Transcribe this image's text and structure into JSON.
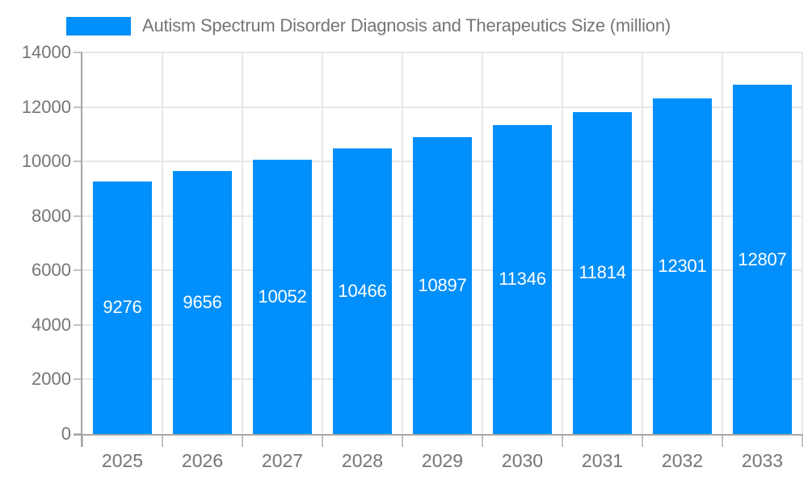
{
  "chart_data": {
    "type": "bar",
    "title": "Autism Spectrum Disorder Diagnosis and Therapeutics Size (million)",
    "categories": [
      "2025",
      "2026",
      "2027",
      "2028",
      "2029",
      "2030",
      "2031",
      "2032",
      "2033"
    ],
    "values": [
      9276,
      9656,
      10052,
      10466,
      10897,
      11346,
      11814,
      12301,
      12807
    ],
    "xlabel": "",
    "ylabel": "",
    "ylim": [
      0,
      14000
    ],
    "yticks": [
      0,
      2000,
      4000,
      6000,
      8000,
      10000,
      12000,
      14000
    ],
    "grid": true,
    "legend_position": "top-left",
    "value_label_position": "inside-center",
    "colors": {
      "bar": "#008FFB",
      "bar_value_label": "#FFFFFF",
      "axis_tick_label": "#757575",
      "legend_text": "#757575",
      "gridline": "#E7E7E7",
      "axis_line": "#A6A6A6",
      "tick_mark": "#C2C2C2",
      "background": "#FFFFFF"
    }
  }
}
